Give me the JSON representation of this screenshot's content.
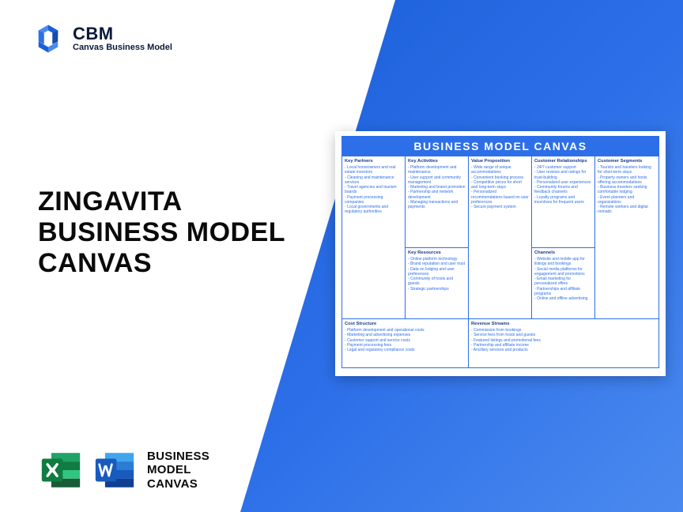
{
  "logo": {
    "abbr": "CBM",
    "name": "Canvas Business Model"
  },
  "main_title": {
    "l1": "ZINGAVITA",
    "l2": "BUSINESS MODEL",
    "l3": "CANVAS"
  },
  "bottom_label": {
    "l1": "BUSINESS",
    "l2": "MODEL",
    "l3": "CANVAS"
  },
  "canvas": {
    "title": "BUSINESS MODEL CANVAS",
    "boxes": {
      "key_partners": {
        "head": "Key Partners",
        "items": [
          "Local homeowners and real estate investors",
          "Cleaning and maintenance services",
          "Travel agencies and tourism boards",
          "Payment processing companies",
          "Local governments and regulatory authorities"
        ]
      },
      "key_activities": {
        "head": "Key Activities",
        "items": [
          "Platform development and maintenance",
          "User support and community management",
          "Marketing and brand promotion",
          "Partnership and network development",
          "Managing transactions and payments"
        ]
      },
      "value_proposition": {
        "head": "Value Proposition",
        "items": [
          "Wide range of unique accommodations",
          "Convenient booking process",
          "Competitive prices for short and long-term stays",
          "Personalized recommendations based on user preferences",
          "Secure payment system"
        ]
      },
      "customer_relationships": {
        "head": "Customer Relationships",
        "items": [
          "24/7 customer support",
          "User reviews and ratings for trust-building",
          "Personalized user experiences",
          "Community forums and feedback channels",
          "Loyalty programs and incentives for frequent users"
        ]
      },
      "customer_segments": {
        "head": "Customer Segments",
        "items": [
          "Tourists and travelers looking for short-term stays",
          "Property owners and hosts offering accommodations",
          "Business travelers seeking comfortable lodging",
          "Event planners and organizations",
          "Remote workers and digital nomads"
        ]
      },
      "key_resources": {
        "head": "Key Resources",
        "items": [
          "Online platform technology",
          "Brand reputation and user trust",
          "Data on lodging and user preferences",
          "Community of hosts and guests",
          "Strategic partnerships"
        ]
      },
      "channels": {
        "head": "Channels",
        "items": [
          "Website and mobile app for listings and bookings",
          "Social media platforms for engagement and promotions",
          "Email marketing for personalized offers",
          "Partnerships and affiliate programs",
          "Online and offline advertising"
        ]
      },
      "cost_structure": {
        "head": "Cost Structure",
        "items": [
          "Platform development and operational costs",
          "Marketing and advertising expenses",
          "Customer support and service costs",
          "Payment processing fees",
          "Legal and regulatory compliance costs"
        ]
      },
      "revenue_streams": {
        "head": "Revenue Streams",
        "items": [
          "Commission from bookings",
          "Service fees from hosts and guests",
          "Featured listings and promotional fees",
          "Partnership and affiliate income",
          "Ancillary services and products"
        ]
      }
    }
  },
  "colors": {
    "brand_blue": "#2d6fe8",
    "excel_green": "#107c41",
    "word_blue": "#185abd"
  }
}
